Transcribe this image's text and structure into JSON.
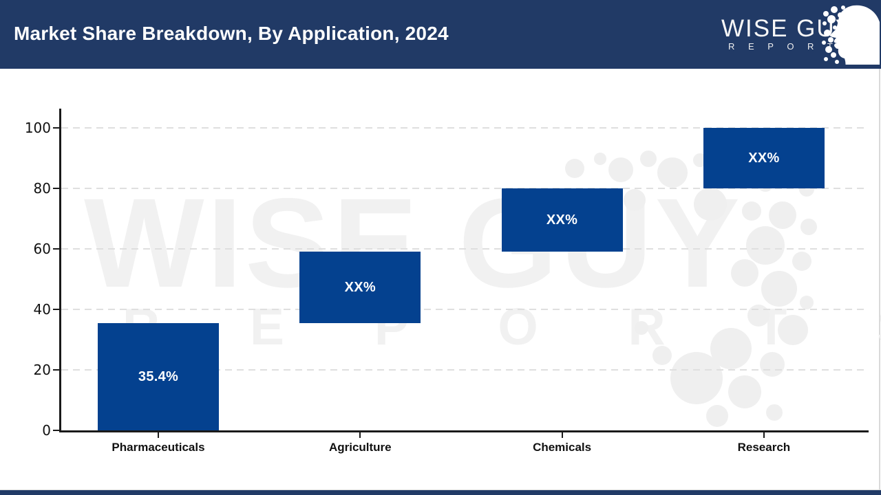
{
  "header": {
    "title": "Market Share Breakdown, By Application, 2024",
    "logo": {
      "brand_line1": "WISE GUY",
      "brand_line2": "R E P O R T S",
      "head_icon": "dotted-head-profile-icon"
    }
  },
  "watermark": {
    "line1": "WISE GUY",
    "line2": "R E P O R T S"
  },
  "chart_data": {
    "type": "bar",
    "subtype": "floating-waterfall-bars",
    "title": "Market Share Breakdown, By Application, 2024",
    "categories": [
      "Pharmaceuticals",
      "Agriculture",
      "Chemicals",
      "Research"
    ],
    "segments": [
      {
        "category": "Pharmaceuticals",
        "start": 0,
        "end": 35.4,
        "label": "35.4%"
      },
      {
        "category": "Agriculture",
        "start": 35.4,
        "end": 59,
        "label": "XX%"
      },
      {
        "category": "Chemicals",
        "start": 59,
        "end": 80,
        "label": "XX%"
      },
      {
        "category": "Research",
        "start": 80,
        "end": 100,
        "label": "XX%"
      }
    ],
    "xlabel": "",
    "ylabel": "",
    "ylim": [
      0,
      100
    ],
    "yticks": [
      0,
      20,
      40,
      60,
      80,
      100
    ],
    "grid": "horizontal-dashed",
    "legend": "none",
    "bar_color": "#04418f",
    "bar_label_color": "#ffffff"
  },
  "colors": {
    "header_bg": "#213a66",
    "footer_bg": "#213a66",
    "bar": "#04418f",
    "axis": "#1a1a1a",
    "gridline": "#dfdfdf",
    "watermark": "#f1f1f1",
    "page_bg": "#ffffff"
  }
}
